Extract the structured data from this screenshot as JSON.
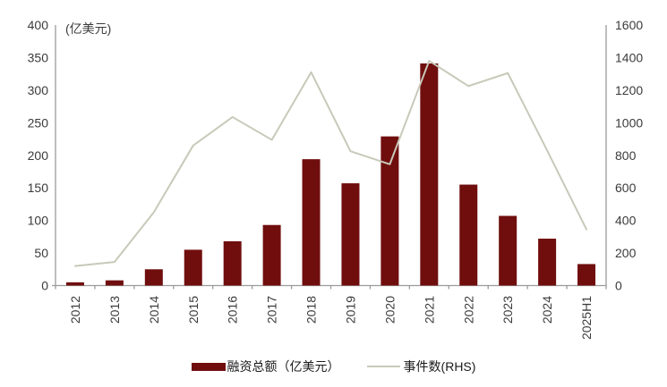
{
  "chart_data": {
    "type": "bar",
    "combo": "bar+line",
    "title": "",
    "unit_label": "(亿美元)",
    "categories": [
      "2012",
      "2013",
      "2014",
      "2015",
      "2016",
      "2017",
      "2018",
      "2019",
      "2020",
      "2021",
      "2022",
      "2023",
      "2024",
      "2025H1"
    ],
    "series": [
      {
        "name": "融资总额（亿美元）",
        "type": "bar",
        "axis": "left",
        "color": "#700E0E",
        "values": [
          5,
          8,
          25,
          55,
          68,
          93,
          194,
          157,
          229,
          341,
          155,
          107,
          72,
          33
        ]
      },
      {
        "name": "事件数(RHS)",
        "type": "line",
        "axis": "right",
        "color": "#C8C9B9",
        "values": [
          120,
          145,
          450,
          860,
          1035,
          895,
          1310,
          825,
          745,
          1380,
          1225,
          1305,
          830,
          345
        ]
      }
    ],
    "left_axis": {
      "min": 0,
      "max": 400,
      "step": 50,
      "ticks": [
        "0",
        "50",
        "100",
        "150",
        "200",
        "250",
        "300",
        "350",
        "400"
      ]
    },
    "right_axis": {
      "min": 0,
      "max": 1600,
      "step": 200,
      "ticks": [
        "0",
        "200",
        "400",
        "600",
        "800",
        "1000",
        "1200",
        "1400",
        "1600"
      ]
    },
    "grid": "off",
    "legend_position": "bottom"
  },
  "colors": {
    "bar": "#700E0E",
    "line": "#C8C9B9",
    "axis": "#9B9B9B",
    "tick_text": "#3b3b3b",
    "legend_text": "#1a1a1a",
    "background": "#ffffff"
  }
}
